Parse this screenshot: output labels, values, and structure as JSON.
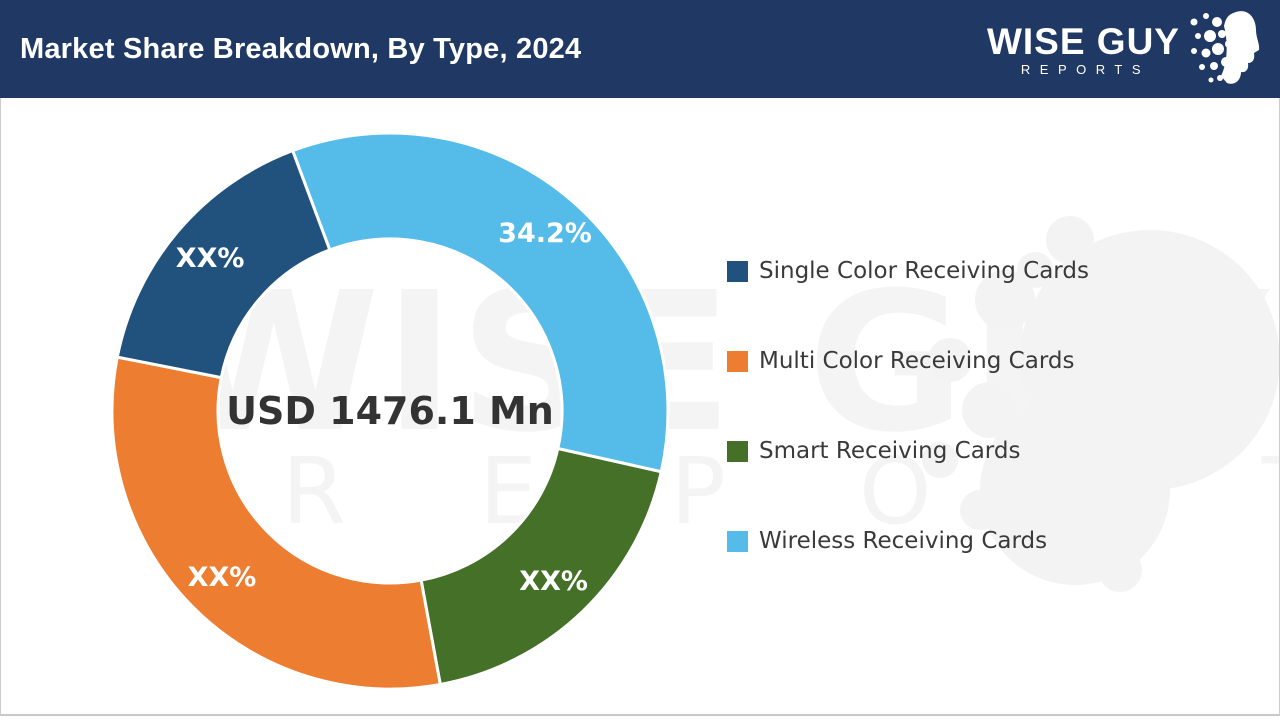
{
  "header": {
    "title": "Market Share Breakdown, By Type, 2024"
  },
  "logo": {
    "line1": "WISE GUY",
    "line2": "REPORTS"
  },
  "watermark": {
    "line1": "WISE GUY",
    "line2": "REPORTS"
  },
  "chart_data": {
    "type": "pie",
    "donut": true,
    "title": "Market Share Breakdown, By Type, 2024",
    "center_label": "USD 1476.1 Mn",
    "start_angle_deg": -20.5,
    "direction": "clockwise",
    "legend_position": "right",
    "segments": [
      {
        "name": "Wireless Receiving Cards",
        "pct": 34.2,
        "display_label": "34.2%",
        "color": "#55BBE8"
      },
      {
        "name": "Smart Receiving Cards",
        "pct": 18.6,
        "display_label": "XX%",
        "color": "#447027"
      },
      {
        "name": "Multi Color Receiving Cards",
        "pct": 31.0,
        "display_label": "XX%",
        "color": "#ED7D31"
      },
      {
        "name": "Single Color Receiving Cards",
        "pct": 16.2,
        "display_label": "XX%",
        "color": "#21527D"
      }
    ]
  },
  "legend": {
    "items": [
      {
        "label": "Single Color Receiving Cards",
        "color": "#21527D"
      },
      {
        "label": "Multi Color Receiving Cards",
        "color": "#ED7D31"
      },
      {
        "label": "Smart Receiving Cards",
        "color": "#447027"
      },
      {
        "label": "Wireless Receiving Cards",
        "color": "#55BBE8"
      }
    ]
  },
  "colors": {
    "header_bg": "#1F3864",
    "center_text": "#333333",
    "legend_text": "#3A3A3A",
    "border": "#CCCCCC",
    "watermark": "#F4F4F4"
  }
}
